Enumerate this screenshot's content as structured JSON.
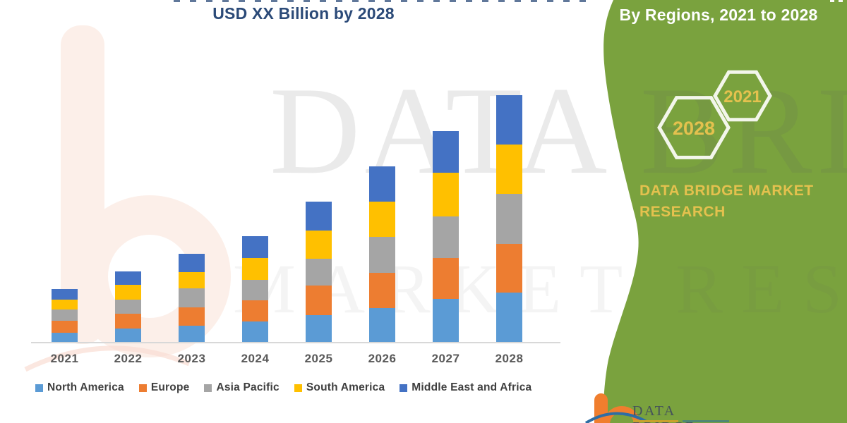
{
  "header": {
    "title_line2": "USD XX Billion by 2028",
    "right_title": "By Regions, 2021 to 2028"
  },
  "chart_data": {
    "type": "bar",
    "stacked": true,
    "title": "USD XX Billion by 2028",
    "xlabel": "",
    "ylabel": "",
    "value_axis_note": "axis unlabeled (values shown as USD XX Billion); values below are relative units estimated from bar heights",
    "grid": false,
    "legend_position": "bottom",
    "categories": [
      "2021",
      "2022",
      "2023",
      "2024",
      "2025",
      "2026",
      "2027",
      "2028"
    ],
    "series": [
      {
        "name": "North America",
        "color": "#5B9BD5",
        "values": [
          14,
          20,
          24,
          30,
          39,
          49,
          62,
          71
        ]
      },
      {
        "name": "Europe",
        "color": "#ED7D31",
        "values": [
          17,
          21,
          26,
          30,
          42,
          50,
          58,
          69
        ]
      },
      {
        "name": "Asia Pacific",
        "color": "#A5A5A5",
        "values": [
          16,
          20,
          27,
          29,
          38,
          51,
          59,
          71
        ]
      },
      {
        "name": "South America",
        "color": "#FFC000",
        "values": [
          14,
          21,
          23,
          31,
          40,
          50,
          62,
          70
        ]
      },
      {
        "name": "Middle East and Africa",
        "color": "#4472C4",
        "values": [
          15,
          19,
          26,
          31,
          41,
          50,
          59,
          70
        ]
      }
    ],
    "stack_totals": [
      76,
      101,
      126,
      151,
      200,
      250,
      300,
      351
    ]
  },
  "right_panel": {
    "hexagon_back_label": "2028",
    "hexagon_front_label": "2021",
    "brand_line1": "DATA BRIDGE MARKET",
    "brand_line2": "RESEARCH",
    "colors": {
      "background": "#7AA23E",
      "accent_text": "#E4C14E",
      "hex_stroke": "#F3F6EB",
      "header_text": "#FFFFFF"
    }
  },
  "watermark": {
    "line1": "DATA BRIDGE",
    "line2": "MARKET RESEARCH"
  },
  "footer_logo": {
    "brand": "DATA BRIDGE",
    "colors": {
      "b_glyph": "#F07E2E",
      "text": "#44525A",
      "underline_left": "#C9A22C",
      "underline_right": "#4E8674"
    }
  },
  "colors": {
    "title_navy": "#2B4A78",
    "axis_line": "#D8D8D8",
    "x_label": "#595959",
    "legend_text": "#3F3F3F"
  }
}
